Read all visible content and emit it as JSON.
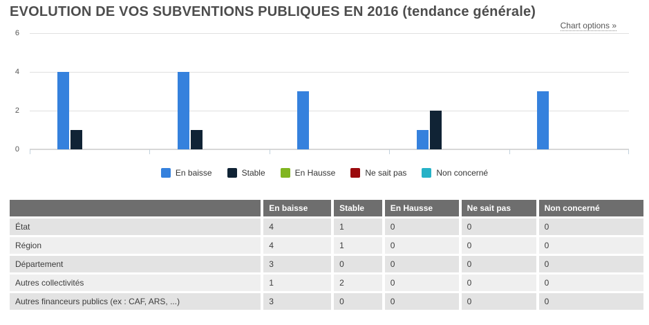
{
  "page": {
    "title": "EVOLUTION DE VOS SUBVENTIONS PUBLIQUES EN 2016 (tendance générale)",
    "chart_options_label": "Chart options »"
  },
  "chart_data": {
    "type": "bar",
    "categories": [
      "État",
      "Région",
      "Département",
      "Autres collectivités",
      "Autres financeurs publics (ex : CAF, ARS, ...)"
    ],
    "series": [
      {
        "name": "En baisse",
        "color": "#3581dd",
        "values": [
          4,
          4,
          3,
          1,
          3
        ]
      },
      {
        "name": "Stable",
        "color": "#102335",
        "values": [
          1,
          1,
          0,
          2,
          0
        ]
      },
      {
        "name": "En Hausse",
        "color": "#80b520",
        "values": [
          0,
          0,
          0,
          0,
          0
        ]
      },
      {
        "name": "Ne sait pas",
        "color": "#9b0a0d",
        "values": [
          0,
          0,
          0,
          0,
          0
        ]
      },
      {
        "name": "Non concerné",
        "color": "#26b2c7",
        "values": [
          0,
          0,
          0,
          0,
          0
        ]
      }
    ],
    "ylim": [
      0,
      6
    ],
    "yticks": [
      6,
      4,
      2,
      0
    ],
    "grid": true,
    "legend_position": "bottom"
  },
  "table": {
    "columns": [
      "",
      "En baisse",
      "Stable",
      "En Hausse",
      "Ne sait pas",
      "Non concerné"
    ],
    "rows": [
      {
        "label": "État",
        "values": [
          "4",
          "1",
          "0",
          "0",
          "0"
        ]
      },
      {
        "label": "Région",
        "values": [
          "4",
          "1",
          "0",
          "0",
          "0"
        ]
      },
      {
        "label": "Département",
        "values": [
          "3",
          "0",
          "0",
          "0",
          "0"
        ]
      },
      {
        "label": "Autres collectivités",
        "values": [
          "1",
          "2",
          "0",
          "0",
          "0"
        ]
      },
      {
        "label": "Autres financeurs publics (ex : CAF, ARS, ...)",
        "values": [
          "3",
          "0",
          "0",
          "0",
          "0"
        ]
      }
    ]
  }
}
